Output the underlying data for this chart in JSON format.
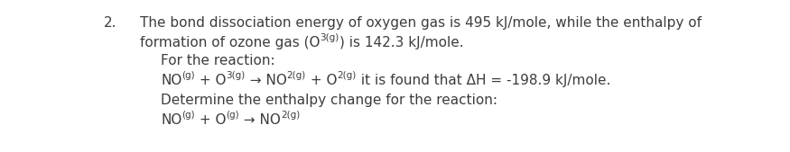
{
  "number": "2.",
  "line1": "The bond dissociation energy of oxygen gas is 495 kJ/mole, while the enthalpy of",
  "line2_pre": "formation of ozone gas (O",
  "line2_sub": "3(g)",
  "line2_post": ") is 142.3 kJ/mole.",
  "line3": "For the reaction:",
  "line5": "Determine the enthalpy change for the reaction:",
  "background_color": "#ffffff",
  "text_color": "#3d3d3d",
  "font_size": 11.0,
  "sub_font_size": 7.5,
  "fig_width": 8.75,
  "fig_height": 1.69,
  "dpi": 100
}
